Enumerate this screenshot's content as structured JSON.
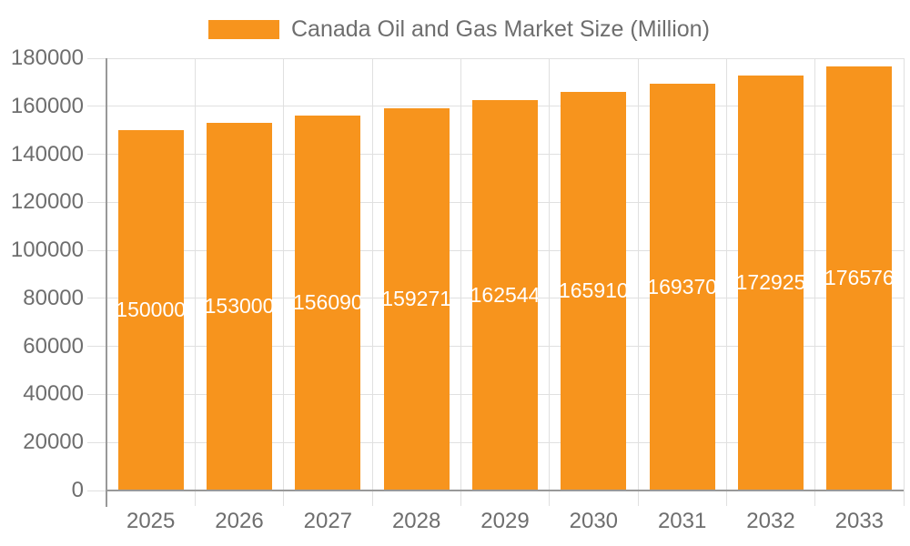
{
  "chart_data": {
    "type": "bar",
    "title": "Canada Oil and Gas Market Size (Million)",
    "legend_label": "Canada Oil and Gas Market Size (Million)",
    "legend_position": "top",
    "categories": [
      "2025",
      "2026",
      "2027",
      "2028",
      "2029",
      "2030",
      "2031",
      "2032",
      "2033"
    ],
    "series": [
      {
        "name": "Canada Oil and Gas Market Size (Million)",
        "values": [
          150000,
          153000,
          156090,
          159271,
          162544,
          165910,
          169370,
          172925,
          176576
        ]
      }
    ],
    "bar_labels": [
      "150000",
      "153000",
      "156090",
      "159271",
      "162544",
      "165910",
      "169370",
      "172925",
      "176576"
    ],
    "xlabel": "",
    "ylabel": "",
    "ylim": [
      0,
      180000
    ],
    "ytick_step": 20000,
    "yticks": [
      0,
      20000,
      40000,
      60000,
      80000,
      100000,
      120000,
      140000,
      160000,
      180000
    ],
    "grid": true
  },
  "colors": {
    "bar": "#F7941D",
    "bar_label": "#FFFFFF",
    "axis": "#999999",
    "gridline": "#E0E0E0",
    "text": "#6E6E6E",
    "background": "#FFFFFF"
  }
}
